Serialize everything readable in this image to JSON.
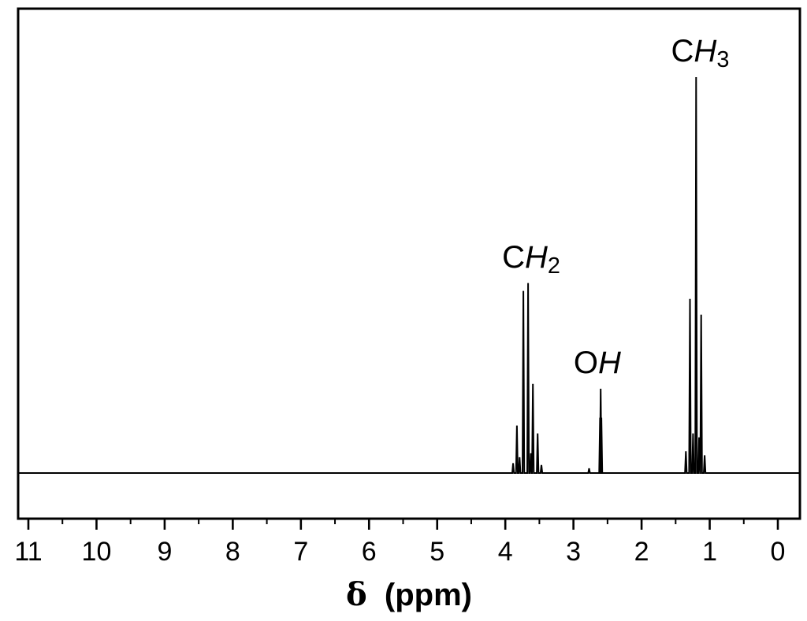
{
  "figure": {
    "background_color": "#ffffff",
    "line_color": "#000000"
  },
  "chart_data": {
    "type": "line",
    "title": "",
    "xlabel": "δ (ppm)",
    "xlabel_symbol": "δ",
    "xlabel_unit": "(ppm)",
    "ylabel": "",
    "grid": false,
    "legend": false,
    "axis": {
      "min": 0,
      "max": 11,
      "reversed": true,
      "major_tick_values": [
        11,
        10,
        9,
        8,
        7,
        6,
        5,
        4,
        3,
        2,
        1,
        0
      ],
      "major_tick_labels": [
        "11",
        "10",
        "9",
        "8",
        "7",
        "6",
        "5",
        "4",
        "3",
        "2",
        "1",
        "0"
      ],
      "minor_tick_step": 0.5
    },
    "peaks": [
      {
        "id": "ch2",
        "label": {
          "pre": "C",
          "italic": "H",
          "sub": "2",
          "ppm": 3.62
        },
        "center_ppm": 3.67,
        "multiplicity": "quartet",
        "lines": [
          {
            "ppm": 3.885,
            "rel_intensity": 0.025
          },
          {
            "ppm": 3.83,
            "rel_intensity": 0.12
          },
          {
            "ppm": 3.79,
            "rel_intensity": 0.04
          },
          {
            "ppm": 3.735,
            "rel_intensity": 0.46
          },
          {
            "ppm": 3.665,
            "rel_intensity": 0.48
          },
          {
            "ppm": 3.625,
            "rel_intensity": 0.05
          },
          {
            "ppm": 3.595,
            "rel_intensity": 0.225
          },
          {
            "ppm": 3.525,
            "rel_intensity": 0.1
          },
          {
            "ppm": 3.47,
            "rel_intensity": 0.02
          }
        ]
      },
      {
        "id": "oh",
        "label": {
          "pre": "O",
          "italic": "H",
          "sub": "",
          "ppm": 2.65
        },
        "center_ppm": 2.6,
        "multiplicity": "singlet",
        "lines": [
          {
            "ppm": 2.77,
            "rel_intensity": 0.012
          },
          {
            "ppm": 2.61,
            "rel_intensity": 0.14
          },
          {
            "ppm": 2.6,
            "rel_intensity": 0.213
          },
          {
            "ppm": 2.59,
            "rel_intensity": 0.14
          }
        ]
      },
      {
        "id": "ch3",
        "label": {
          "pre": "C",
          "italic": "H",
          "sub": "3",
          "ppm": 1.14
        },
        "center_ppm": 1.2,
        "multiplicity": "triplet",
        "lines": [
          {
            "ppm": 1.35,
            "rel_intensity": 0.055
          },
          {
            "ppm": 1.29,
            "rel_intensity": 0.44
          },
          {
            "ppm": 1.245,
            "rel_intensity": 0.1
          },
          {
            "ppm": 1.2,
            "rel_intensity": 1.0
          },
          {
            "ppm": 1.155,
            "rel_intensity": 0.09
          },
          {
            "ppm": 1.125,
            "rel_intensity": 0.4
          },
          {
            "ppm": 1.075,
            "rel_intensity": 0.045
          }
        ]
      }
    ]
  }
}
